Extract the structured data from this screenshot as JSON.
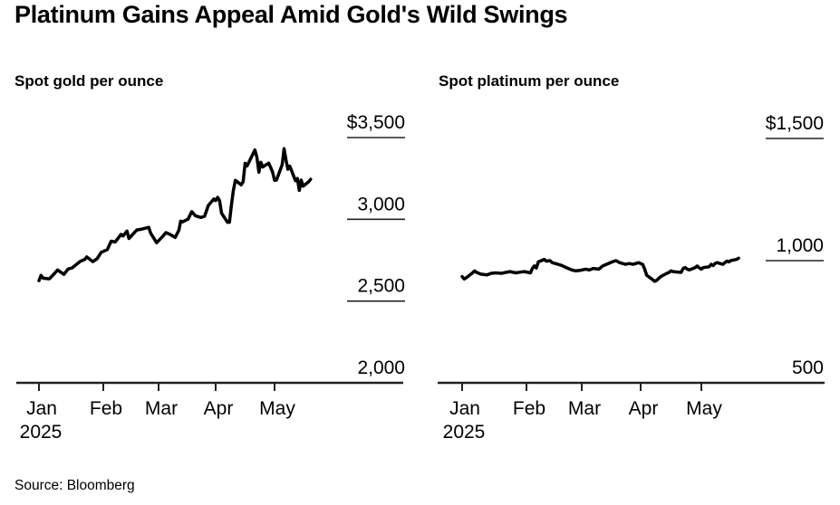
{
  "title": "Platinum Gains Appeal Amid Gold's Wild Swings",
  "source": "Source: Bloomberg",
  "colors": {
    "series_line": "#000000",
    "axis_line": "#222222",
    "text": "#000000",
    "background": "#ffffff"
  },
  "chart_data": [
    {
      "type": "line",
      "title": "Spot gold per ounce",
      "currency_unit": "USD per ounce",
      "legend": "none",
      "grid": "horizontal-tick-segments-right",
      "ylim": [
        2000,
        3500
      ],
      "y_ticks": [
        {
          "label": "$3,500",
          "value": 3500
        },
        {
          "label": "3,000",
          "value": 3000
        },
        {
          "label": "2,500",
          "value": 2500
        },
        {
          "label": "2,000",
          "value": 2000
        }
      ],
      "x_ticks": [
        "Jan",
        "Feb",
        "Mar",
        "Apr",
        "May"
      ],
      "x_year": "2025",
      "series": [
        {
          "name": "Spot gold",
          "points": [
            [
              "Jan 1",
              2625
            ],
            [
              "Jan 2",
              2657
            ],
            [
              "Jan 3",
              2640
            ],
            [
              "Jan 6",
              2636
            ],
            [
              "Jan 8",
              2662
            ],
            [
              "Jan 10",
              2690
            ],
            [
              "Jan 13",
              2663
            ],
            [
              "Jan 15",
              2696
            ],
            [
              "Jan 17",
              2703
            ],
            [
              "Jan 21",
              2744
            ],
            [
              "Jan 23",
              2754
            ],
            [
              "Jan 24",
              2770
            ],
            [
              "Jan 27",
              2741
            ],
            [
              "Jan 29",
              2759
            ],
            [
              "Jan 31",
              2798
            ],
            [
              "Feb 3",
              2815
            ],
            [
              "Feb 5",
              2866
            ],
            [
              "Feb 7",
              2861
            ],
            [
              "Feb 10",
              2908
            ],
            [
              "Feb 11",
              2898
            ],
            [
              "Feb 13",
              2928
            ],
            [
              "Feb 14",
              2883
            ],
            [
              "Feb 18",
              2935
            ],
            [
              "Feb 20",
              2939
            ],
            [
              "Feb 24",
              2951
            ],
            [
              "Feb 25",
              2915
            ],
            [
              "Feb 27",
              2877
            ],
            [
              "Feb 28",
              2857
            ],
            [
              "Mar 3",
              2893
            ],
            [
              "Mar 5",
              2919
            ],
            [
              "Mar 7",
              2909
            ],
            [
              "Mar 10",
              2889
            ],
            [
              "Mar 12",
              2933
            ],
            [
              "Mar 13",
              2989
            ],
            [
              "Mar 14",
              2984
            ],
            [
              "Mar 17",
              3001
            ],
            [
              "Mar 19",
              3047
            ],
            [
              "Mar 21",
              3022
            ],
            [
              "Mar 24",
              3011
            ],
            [
              "Mar 26",
              3019
            ],
            [
              "Mar 28",
              3085
            ],
            [
              "Mar 31",
              3124
            ],
            [
              "Apr 1",
              3114
            ],
            [
              "Apr 2",
              3134
            ],
            [
              "Apr 3",
              3115
            ],
            [
              "Apr 4",
              3038
            ],
            [
              "Apr 7",
              2982
            ],
            [
              "Apr 8",
              2982
            ],
            [
              "Apr 9",
              3083
            ],
            [
              "Apr 10",
              3175
            ],
            [
              "Apr 11",
              3238
            ],
            [
              "Apr 14",
              3211
            ],
            [
              "Apr 15",
              3230
            ],
            [
              "Apr 16",
              3343
            ],
            [
              "Apr 17",
              3327
            ],
            [
              "Apr 21",
              3424
            ],
            [
              "Apr 22",
              3380
            ],
            [
              "Apr 23",
              3288
            ],
            [
              "Apr 24",
              3349
            ],
            [
              "Apr 25",
              3320
            ],
            [
              "Apr 28",
              3344
            ],
            [
              "Apr 29",
              3317
            ],
            [
              "Apr 30",
              3289
            ],
            [
              "May 1",
              3239
            ],
            [
              "May 2",
              3240
            ],
            [
              "May 5",
              3334
            ],
            [
              "May 6",
              3432
            ],
            [
              "May 7",
              3364
            ],
            [
              "May 8",
              3306
            ],
            [
              "May 9",
              3325
            ],
            [
              "May 12",
              3236
            ],
            [
              "May 13",
              3250
            ],
            [
              "May 14",
              3177
            ],
            [
              "May 15",
              3240
            ],
            [
              "May 16",
              3203
            ],
            [
              "May 19",
              3230
            ],
            [
              "May 20",
              3245
            ]
          ]
        }
      ]
    },
    {
      "type": "line",
      "title": "Spot platinum per ounce",
      "currency_unit": "USD per ounce",
      "legend": "none",
      "grid": "horizontal-tick-segments-right",
      "ylim": [
        500,
        1500
      ],
      "y_ticks": [
        {
          "label": "$1,500",
          "value": 1500
        },
        {
          "label": "1,000",
          "value": 1000
        },
        {
          "label": "500",
          "value": 500
        }
      ],
      "x_ticks": [
        "Jan",
        "Feb",
        "Mar",
        "Apr",
        "May"
      ],
      "x_year": "2025",
      "series": [
        {
          "name": "Spot platinum",
          "points": [
            [
              "Jan 1",
              935
            ],
            [
              "Jan 2",
              925
            ],
            [
              "Jan 3",
              930
            ],
            [
              "Jan 6",
              950
            ],
            [
              "Jan 7",
              958
            ],
            [
              "Jan 8",
              952
            ],
            [
              "Jan 10",
              945
            ],
            [
              "Jan 13",
              942
            ],
            [
              "Jan 15",
              948
            ],
            [
              "Jan 17",
              950
            ],
            [
              "Jan 20",
              948
            ],
            [
              "Jan 22",
              952
            ],
            [
              "Jan 24",
              955
            ],
            [
              "Jan 27",
              950
            ],
            [
              "Jan 29",
              953
            ],
            [
              "Jan 31",
              955
            ],
            [
              "Feb 3",
              950
            ],
            [
              "Feb 4",
              968
            ],
            [
              "Feb 5",
              978
            ],
            [
              "Feb 6",
              970
            ],
            [
              "Feb 7",
              995
            ],
            [
              "Feb 10",
              1005
            ],
            [
              "Feb 11",
              998
            ],
            [
              "Feb 13",
              1000
            ],
            [
              "Feb 14",
              992
            ],
            [
              "Feb 17",
              985
            ],
            [
              "Feb 19",
              980
            ],
            [
              "Feb 21",
              972
            ],
            [
              "Feb 24",
              962
            ],
            [
              "Feb 26",
              958
            ],
            [
              "Feb 28",
              960
            ],
            [
              "Mar 3",
              965
            ],
            [
              "Mar 5",
              962
            ],
            [
              "Mar 7",
              968
            ],
            [
              "Mar 10",
              965
            ],
            [
              "Mar 12",
              978
            ],
            [
              "Mar 14",
              985
            ],
            [
              "Mar 17",
              995
            ],
            [
              "Mar 19",
              1000
            ],
            [
              "Mar 21",
              992
            ],
            [
              "Mar 24",
              985
            ],
            [
              "Mar 26",
              988
            ],
            [
              "Mar 28",
              985
            ],
            [
              "Mar 31",
              992
            ],
            [
              "Apr 1",
              988
            ],
            [
              "Apr 2",
              985
            ],
            [
              "Apr 3",
              965
            ],
            [
              "Apr 4",
              940
            ],
            [
              "Apr 7",
              922
            ],
            [
              "Apr 8",
              915
            ],
            [
              "Apr 9",
              920
            ],
            [
              "Apr 10",
              928
            ],
            [
              "Apr 11",
              935
            ],
            [
              "Apr 14",
              948
            ],
            [
              "Apr 15",
              952
            ],
            [
              "Apr 16",
              958
            ],
            [
              "Apr 17",
              955
            ],
            [
              "Apr 21",
              952
            ],
            [
              "Apr 22",
              968
            ],
            [
              "Apr 23",
              972
            ],
            [
              "Apr 24",
              965
            ],
            [
              "Apr 25",
              962
            ],
            [
              "Apr 28",
              972
            ],
            [
              "Apr 29",
              978
            ],
            [
              "Apr 30",
              970
            ],
            [
              "May 1",
              965
            ],
            [
              "May 2",
              972
            ],
            [
              "May 5",
              975
            ],
            [
              "May 6",
              985
            ],
            [
              "May 7",
              980
            ],
            [
              "May 8",
              988
            ],
            [
              "May 9",
              992
            ],
            [
              "May 12",
              985
            ],
            [
              "May 13",
              992
            ],
            [
              "May 14",
              998
            ],
            [
              "May 15",
              995
            ],
            [
              "May 16",
              1000
            ],
            [
              "May 19",
              1005
            ],
            [
              "May 20",
              1010
            ]
          ]
        }
      ]
    }
  ]
}
